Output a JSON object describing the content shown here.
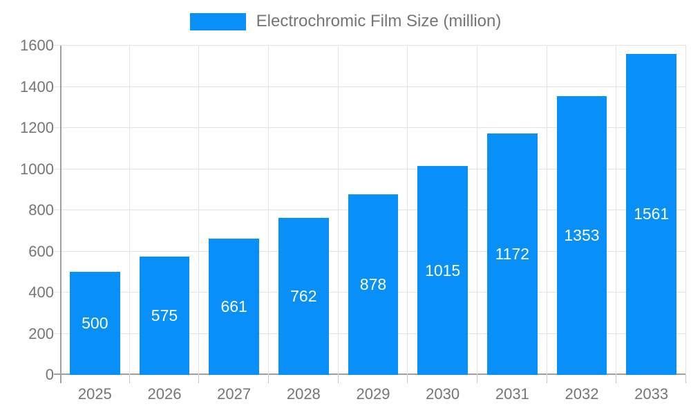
{
  "chart_data": {
    "type": "bar",
    "title": "Electrochromic Film Size (million)",
    "categories": [
      "2025",
      "2026",
      "2027",
      "2028",
      "2029",
      "2030",
      "2031",
      "2032",
      "2033"
    ],
    "values": [
      500,
      575,
      661,
      762,
      878,
      1015,
      1172,
      1353,
      1561
    ],
    "xlabel": "",
    "ylabel": "",
    "ylim": [
      0,
      1600
    ],
    "y_tick_step": 200,
    "y_tick_labels": [
      "0",
      "200",
      "400",
      "600",
      "800",
      "1000",
      "1200",
      "1400",
      "1600"
    ],
    "grid": true,
    "legend_position": "top",
    "value_labels": "centered-white-inside-bars"
  },
  "style": {
    "bar_color": "#0890f8",
    "grid_color": "#e3e3e3",
    "axis_color": "#9e9e9e",
    "tick_color": "#c7c7c7",
    "text_color": "#757575",
    "value_label_color": "#ffffff",
    "background_color": "#ffffff"
  }
}
